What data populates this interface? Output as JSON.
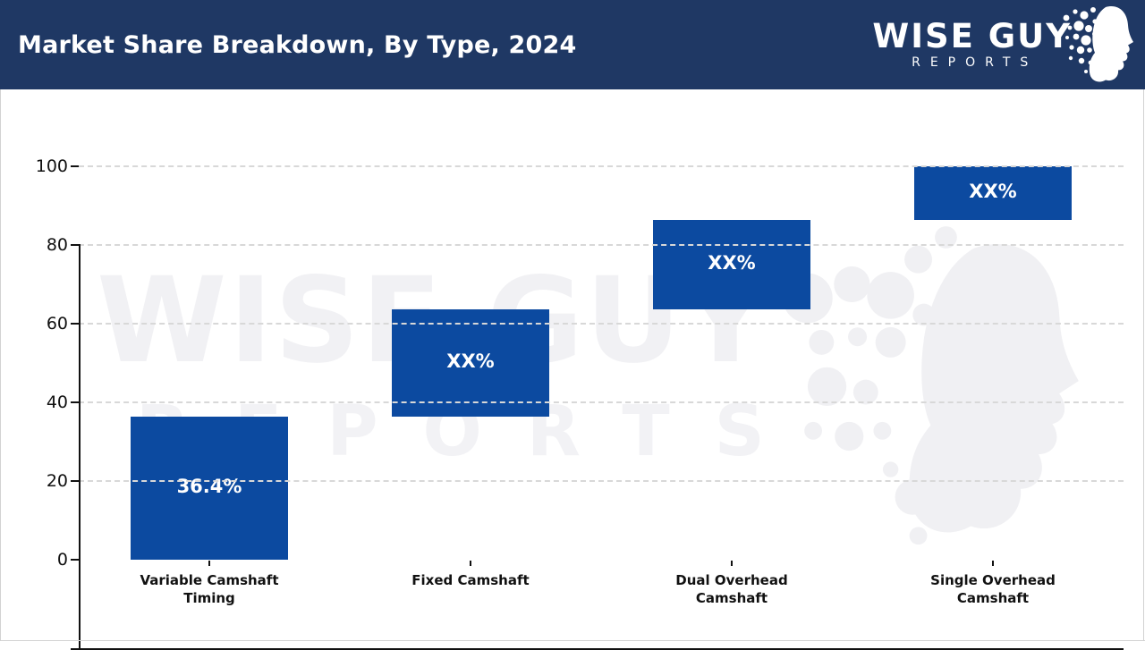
{
  "header": {
    "title": "Market Share Breakdown, By Type, 2024",
    "logo": {
      "name": "WISE GUY",
      "tagline": "REPORTS"
    },
    "bg_color": "#1f3864"
  },
  "watermark": {
    "line1": "WISE GUY",
    "line2": "REPORTS"
  },
  "chart_data": {
    "type": "bar",
    "variant": "waterfall",
    "title": "Market Share Breakdown, By Type, 2024",
    "xlabel": "",
    "ylabel": "",
    "ylim": [
      0,
      100
    ],
    "yticks": [
      0,
      20,
      40,
      60,
      80,
      100
    ],
    "grid": "horizontal-dashed",
    "legend": "none",
    "categories": [
      "Variable Camshaft Timing",
      "Fixed Camshaft",
      "Dual Overhead Camshaft",
      "Single Overhead Camshaft"
    ],
    "bars": [
      {
        "category": "Variable Camshaft Timing",
        "category_lines": [
          "Variable Camshaft",
          "Timing"
        ],
        "start": 0,
        "end": 36.4,
        "value_label": "36.4%"
      },
      {
        "category": "Fixed Camshaft",
        "category_lines": [
          "Fixed Camshaft"
        ],
        "start": 36.4,
        "end": 63.6,
        "value_label": "XX%"
      },
      {
        "category": "Dual Overhead Camshaft",
        "category_lines": [
          "Dual Overhead",
          "Camshaft"
        ],
        "start": 63.6,
        "end": 86.4,
        "value_label": "XX%"
      },
      {
        "category": "Single Overhead Camshaft",
        "category_lines": [
          "Single Overhead",
          "Camshaft"
        ],
        "start": 86.4,
        "end": 100,
        "value_label": "XX%"
      }
    ],
    "colors": {
      "bar": "#0c4aa0",
      "bar_label": "#ffffff",
      "axis": "#111111",
      "gridline": "#d8d8d8",
      "tick_label": "#111111",
      "category_label": "#111111"
    }
  }
}
